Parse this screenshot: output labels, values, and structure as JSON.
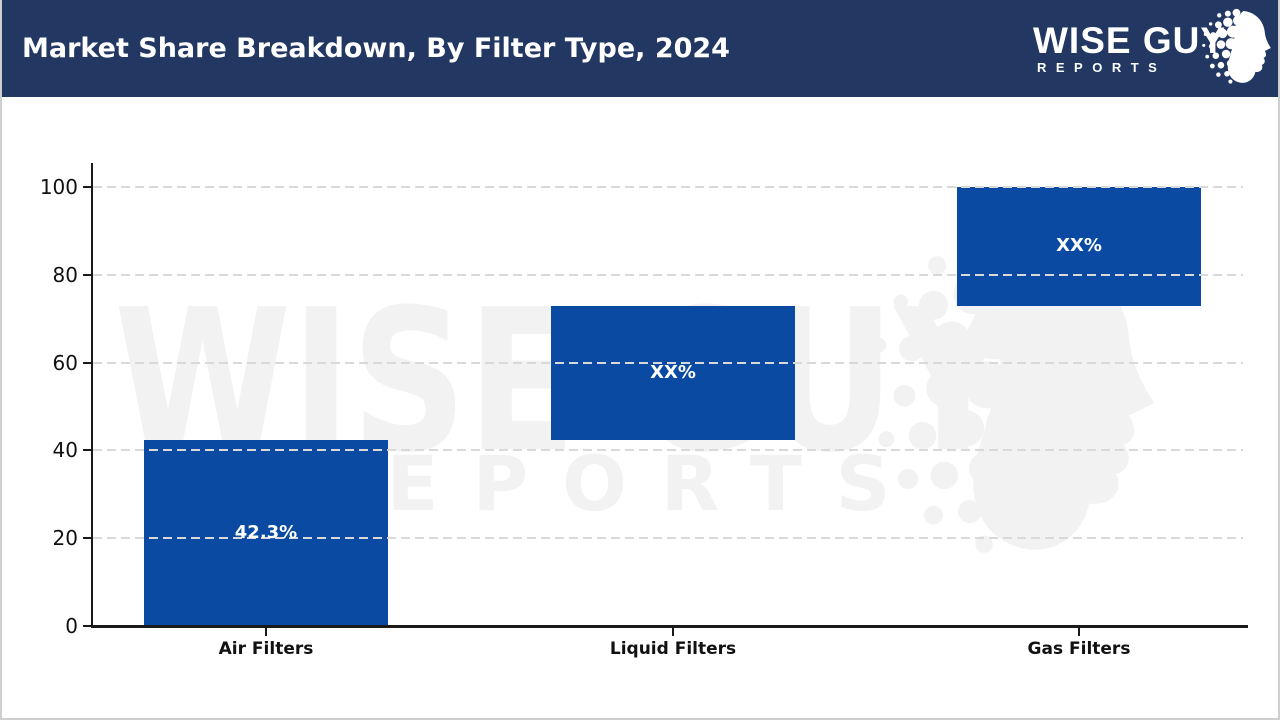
{
  "header": {
    "title": "Market Share Breakdown, By Filter Type, 2024",
    "logo": {
      "line1": "WISE GUY",
      "line2": "REPORTS",
      "face_icon": "dotted-head-profile"
    }
  },
  "watermark": {
    "line1": "WISE GUY",
    "line2": "REPORTS",
    "face_icon": "dotted-head-profile"
  },
  "colors": {
    "header_bg": "#223862",
    "bar": "#0a4aa3",
    "gridline": "#d9d9d9",
    "axis": "#1a1a1a",
    "title_text": "#ffffff",
    "bar_label_text": "#ffffff",
    "watermark": "#f2f2f2"
  },
  "chart_data": {
    "type": "bar",
    "subtype": "waterfall",
    "title": "Market Share Breakdown, By Filter Type, 2024",
    "xlabel": "",
    "ylabel": "",
    "categories": [
      "Air Filters",
      "Liquid Filters",
      "Gas Filters"
    ],
    "segments": [
      {
        "category": "Air Filters",
        "start": 0,
        "end": 42.3,
        "label": "42.3%"
      },
      {
        "category": "Liquid Filters",
        "start": 42.3,
        "end": 72.9,
        "label": "XX%"
      },
      {
        "category": "Gas Filters",
        "start": 72.9,
        "end": 100,
        "label": "XX%"
      }
    ],
    "yticks": [
      0,
      20,
      40,
      60,
      80,
      100
    ],
    "ylim": [
      0,
      105
    ],
    "grid": "horizontal-dashed",
    "legend": "none"
  }
}
